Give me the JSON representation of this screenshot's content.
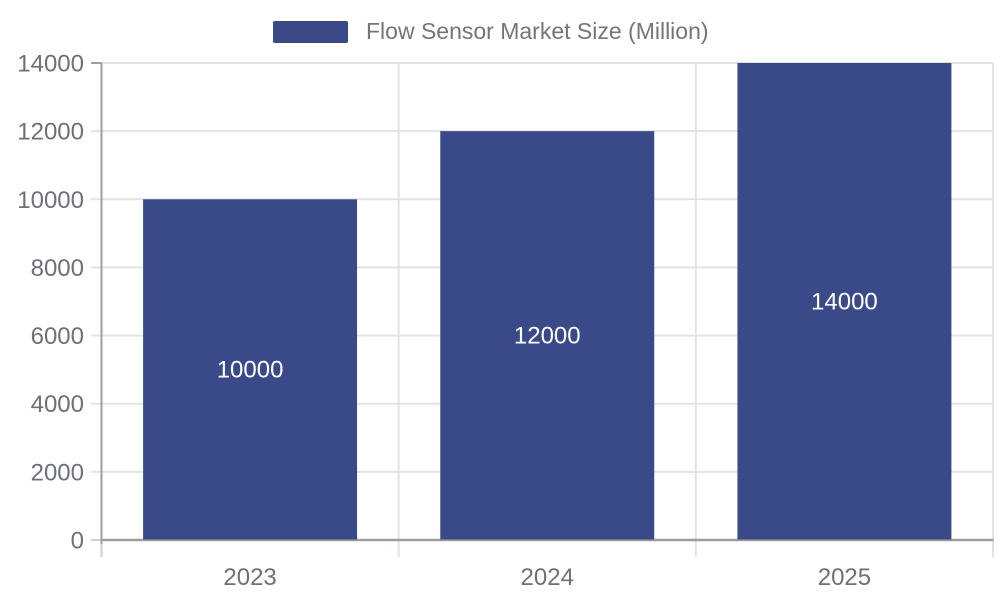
{
  "legend": {
    "label": "Flow Sensor Market Size (Million)"
  },
  "chart_data": {
    "type": "bar",
    "title": "",
    "xlabel": "",
    "ylabel": "",
    "categories": [
      "2023",
      "2024",
      "2025"
    ],
    "series": [
      {
        "name": "Flow Sensor Market Size (Million)",
        "values": [
          10000,
          12000,
          14000
        ]
      }
    ],
    "data_labels": [
      "10000",
      "12000",
      "14000"
    ],
    "ylim": [
      0,
      14000
    ],
    "ytick_step": 2000,
    "yticks": [
      0,
      2000,
      4000,
      6000,
      8000,
      10000,
      12000,
      14000
    ],
    "grid": "on",
    "legend_position": "top-center",
    "colors": {
      "bar": "#3A4A88",
      "grid_line": "#e3e3e3",
      "axis_line": "#9e9e9e",
      "tick_origin": "#c8cee2",
      "tick_boundary": "#dfe2ee",
      "axis_text": "#6e7079",
      "legend_text": "#757575",
      "data_label_text": "#ffffff",
      "background": "#ffffff"
    }
  }
}
